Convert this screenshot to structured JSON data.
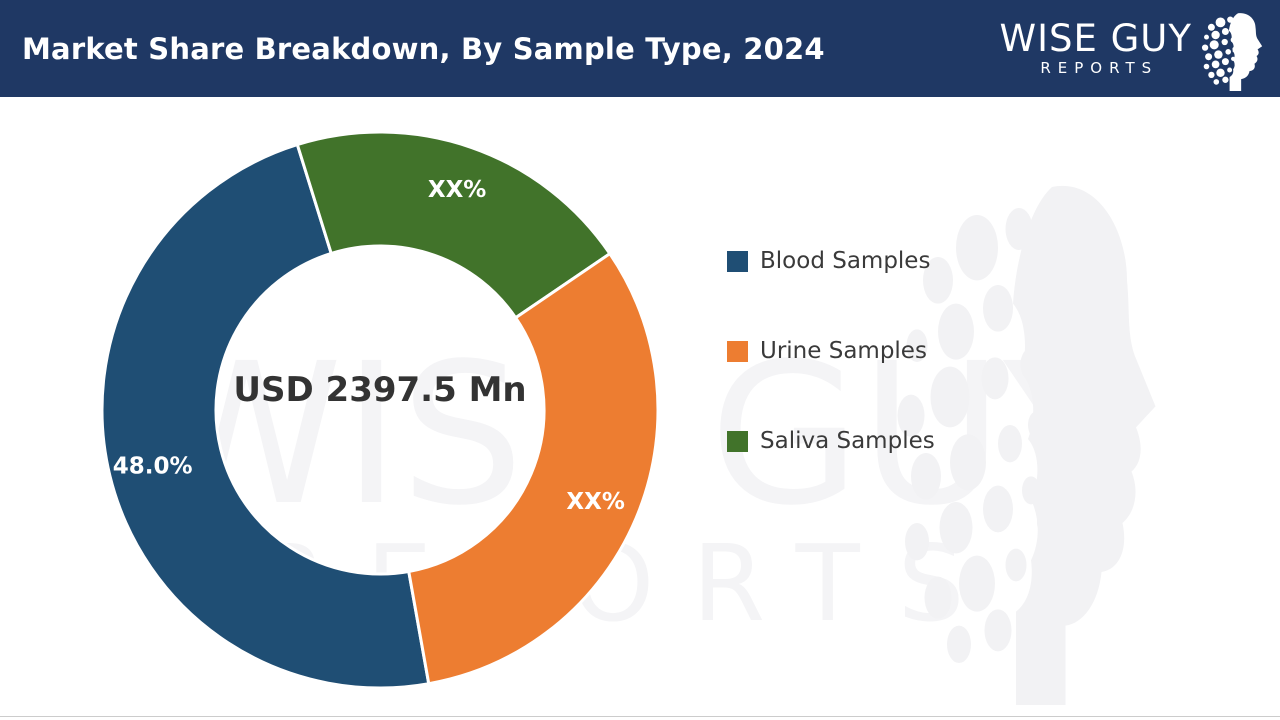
{
  "header": {
    "title": "Market Share Breakdown, By Sample Type, 2024",
    "logo": {
      "line1": "WISE GUY",
      "line2": "REPORTS"
    }
  },
  "watermark": {
    "line1": "WISE GUY",
    "line2": "REPORTS"
  },
  "chart_data": {
    "type": "pie",
    "subtype": "donut",
    "title": "Market Share Breakdown, By Sample Type, 2024",
    "center_label": "USD 2397.5 Mn",
    "categories": [
      "Blood Samples",
      "Urine Samples",
      "Saliva Samples"
    ],
    "values": [
      48.0,
      31.7,
      20.3
    ],
    "display_labels": [
      "48.0%",
      "XX%",
      "XX%"
    ],
    "colors": [
      "#1F4E74",
      "#ED7D31",
      "#41732A"
    ],
    "rotation_deg": 169.9,
    "draw_order": [
      0,
      2,
      1
    ],
    "inner_radius_ratio": 0.59,
    "legend_position": "right",
    "slice_gap_color": "#ffffff"
  },
  "colors": {
    "header_bg": "#1F3864",
    "title_text": "#ffffff",
    "center_text": "#333333",
    "legend_text": "#3a3a3a",
    "watermark": "#f4f4f6"
  }
}
